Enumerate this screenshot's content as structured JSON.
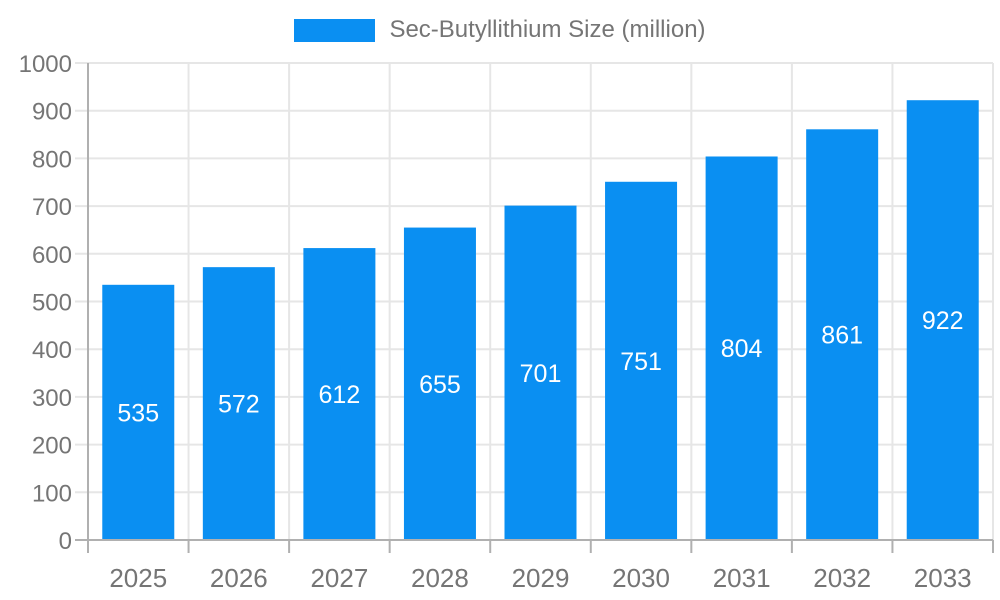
{
  "legend": {
    "label": "Sec-Butyllithium Size (million)"
  },
  "colors": {
    "bar": "#0a8ff2",
    "axis_text": "#757575",
    "axis_line": "#b0b0b0",
    "grid_line": "#e6e6e6",
    "value_label": "#ffffff"
  },
  "chart_data": {
    "type": "bar",
    "title": "",
    "xlabel": "",
    "ylabel": "",
    "series_name": "Sec-Butyllithium Size (million)",
    "categories": [
      "2025",
      "2026",
      "2027",
      "2028",
      "2029",
      "2030",
      "2031",
      "2032",
      "2033"
    ],
    "values": [
      535,
      572,
      612,
      655,
      701,
      751,
      804,
      861,
      922
    ],
    "value_labels_inside_bars": true,
    "ylim": [
      0,
      1000
    ],
    "ytick_step": 100,
    "yticks": [
      "0",
      "100",
      "200",
      "300",
      "400",
      "500",
      "600",
      "700",
      "800",
      "900",
      "1000"
    ],
    "grid": true,
    "legend_position": "top"
  }
}
